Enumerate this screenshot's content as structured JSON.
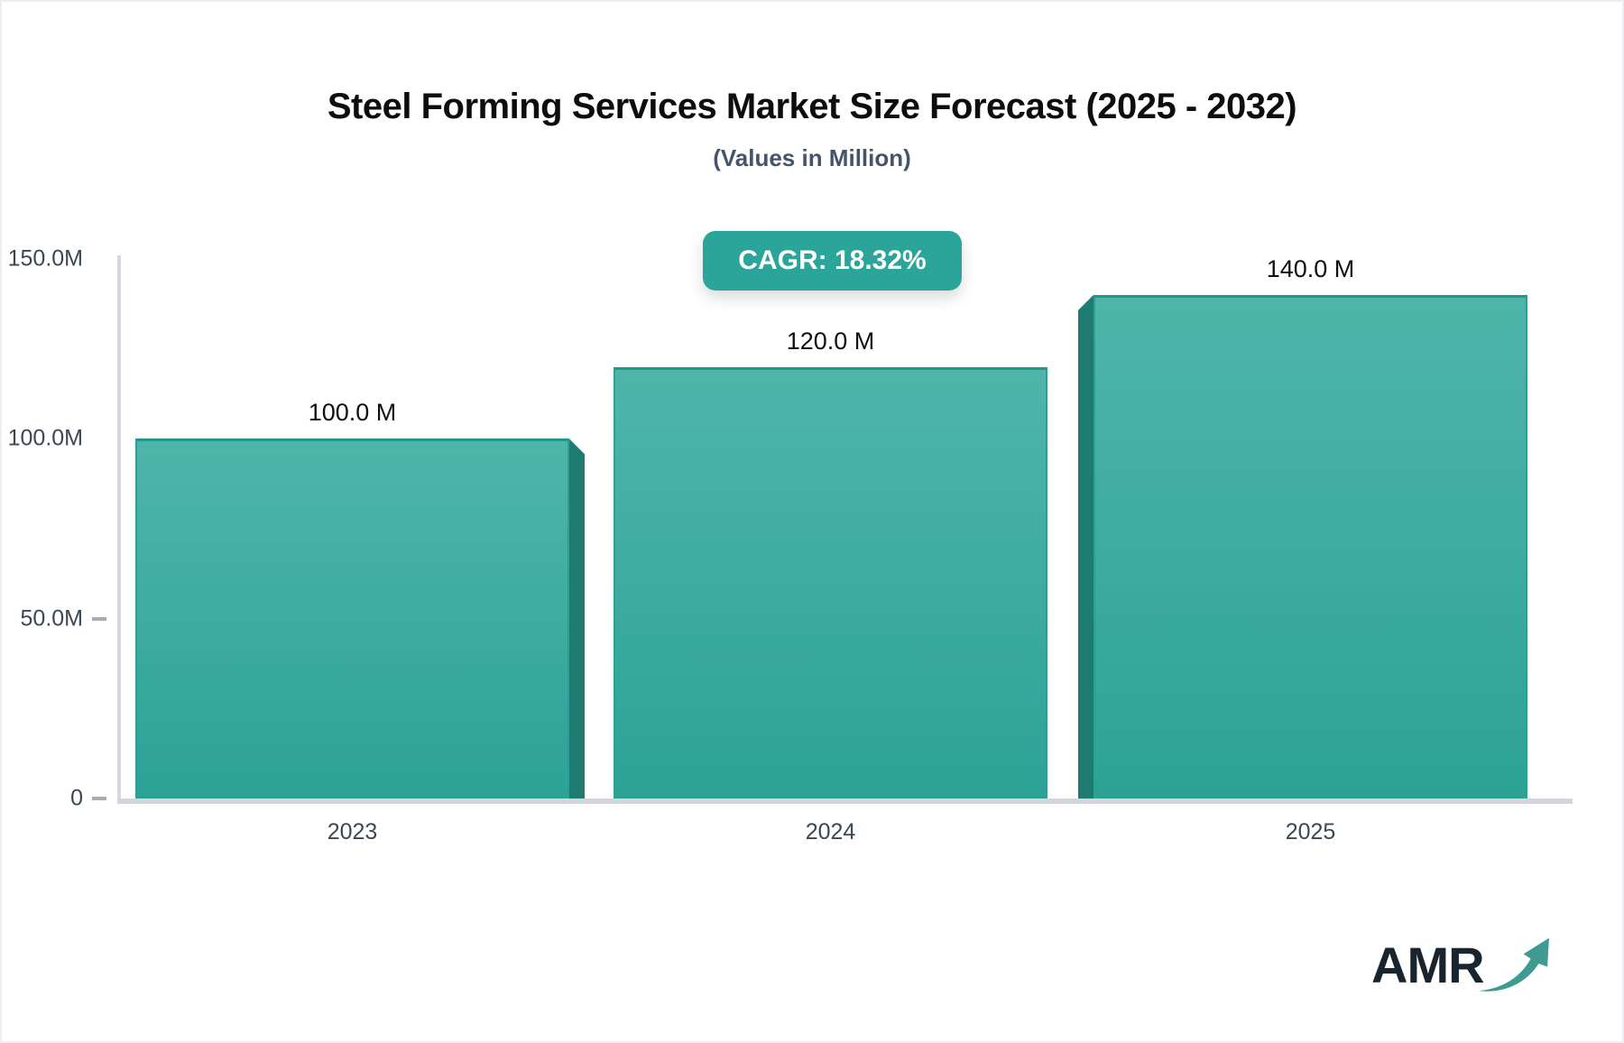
{
  "title": "Steel Forming Services Market Size Forecast (2025 - 2032)",
  "subtitle": "(Values in Million)",
  "badge": {
    "label": "CAGR: 18.32%",
    "bg": "#2ba59a"
  },
  "logo": {
    "text": "AMR"
  },
  "chart_data": {
    "type": "bar",
    "categories": [
      "2023",
      "2024",
      "2025"
    ],
    "values": [
      100,
      120,
      140
    ],
    "value_labels": [
      "100.0 M",
      "120.0 M",
      "140.0 M"
    ],
    "title": "Steel Forming Services Market Size Forecast (2025 - 2032)",
    "subtitle": "(Values in Million)",
    "xlabel": "",
    "ylabel": "",
    "ylim": [
      0,
      150
    ],
    "grid": false,
    "yticks": [
      {
        "label": "150.0M",
        "value": 150,
        "dash": false
      },
      {
        "label": "100.0M",
        "value": 100,
        "dash": false
      },
      {
        "label": "50.0M",
        "value": 50,
        "dash": true
      },
      {
        "label": "0",
        "value": 0,
        "dash": true
      }
    ],
    "annotation": "CAGR: 18.32%",
    "colors": {
      "bar_top": "#4fb5ab",
      "bar_bottom": "#2ca296",
      "bar_border": "#23968b",
      "bar_side_shadow": "#1d7b71",
      "axis": "#d2d6da",
      "badge_bg": "#2ba59a"
    }
  }
}
